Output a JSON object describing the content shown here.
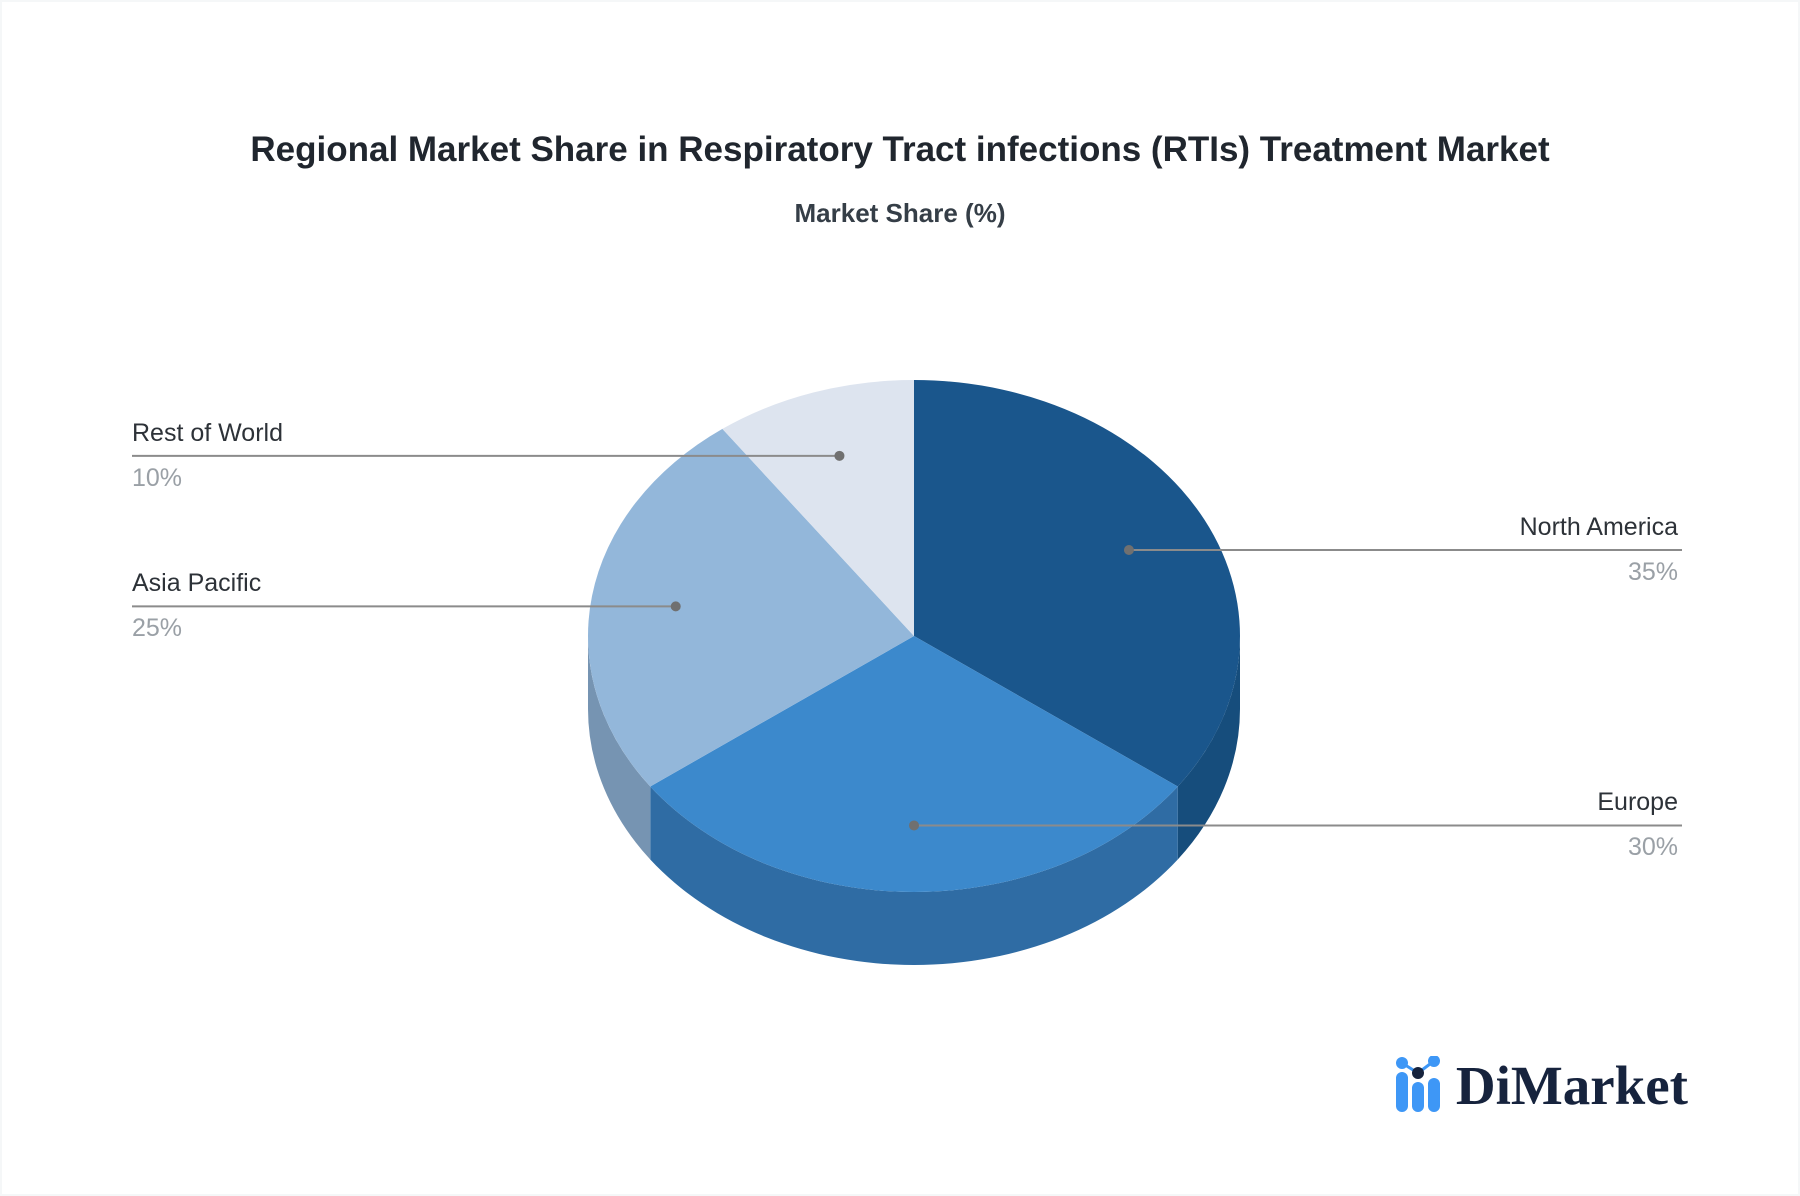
{
  "chart_data": {
    "type": "pie",
    "style": "3d",
    "title": "Regional Market Share in Respiratory Tract infections (RTIs) Treatment Market",
    "subtitle": "Market Share (%)",
    "unit": "%",
    "start_angle_deg": 0,
    "direction": "clockwise",
    "legend": "none",
    "segments": [
      {
        "label": "North America",
        "value": 35,
        "display_value": "35%",
        "color": "#1a568c",
        "wall_color": "#164d7c",
        "label_side": "right"
      },
      {
        "label": "Europe",
        "value": 30,
        "display_value": "30%",
        "color": "#3c89cc",
        "wall_color": "#2f6ca4",
        "label_side": "right"
      },
      {
        "label": "Asia Pacific",
        "value": 25,
        "display_value": "25%",
        "color": "#93b7da",
        "wall_color": "#7694b2",
        "label_side": "left"
      },
      {
        "label": "Rest of World",
        "value": 10,
        "display_value": "10%",
        "color": "#dde4ef",
        "wall_color": "#b8c4d6",
        "label_side": "left"
      }
    ],
    "connector_color": "#8b8b8b",
    "connector_dot_color": "#707070",
    "label_text_color": "#2d3238",
    "percent_text_color": "#9aa0a6"
  },
  "branding": {
    "logo_text": "DiMarket",
    "logo_icon": "bar-line-chart-icon",
    "logo_text_color": "#16233d",
    "logo_accent_color": "#3e97f6"
  }
}
